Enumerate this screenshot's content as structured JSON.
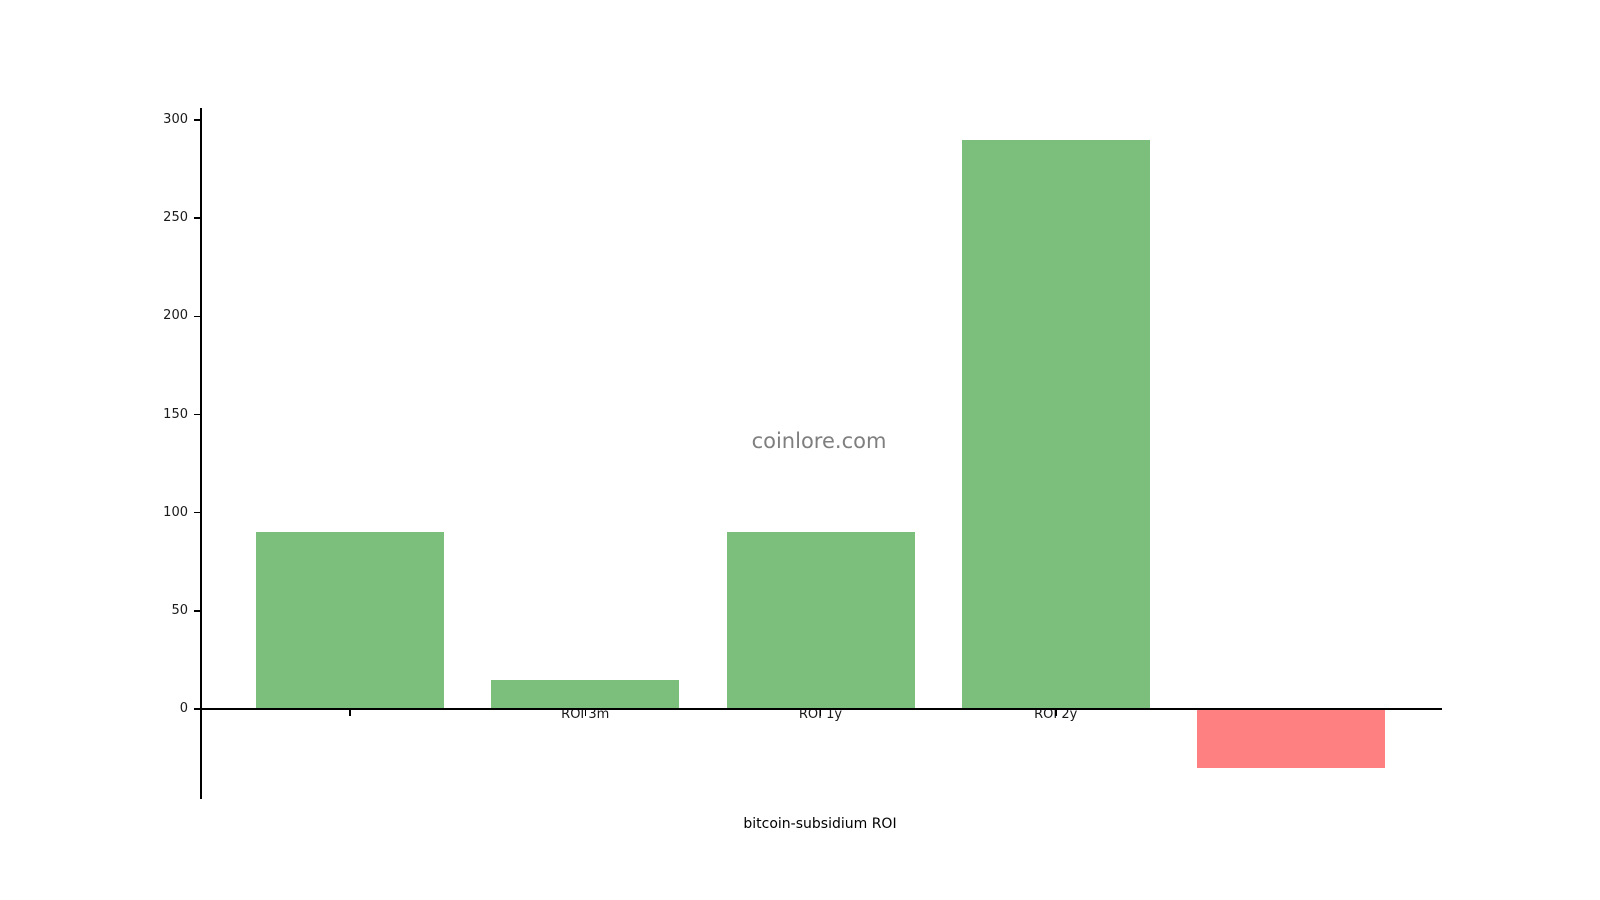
{
  "watermark": {
    "text": "coinlore.com",
    "color": "#7f7f7f"
  },
  "chart_data": {
    "type": "bar",
    "title": "",
    "xlabel": "bitcoin-subsidium ROI",
    "ylabel": "",
    "categories": [
      "",
      "ROI 3m",
      "ROI 1y",
      "ROI 2y",
      ""
    ],
    "values": [
      90,
      15,
      90,
      290,
      -30
    ],
    "bar_colors": [
      "#7cbe7c",
      "#7cbe7c",
      "#7cbe7c",
      "#7cbe7c",
      "#ff8080"
    ],
    "color_positive": "#7cbe7c",
    "color_negative": "#ff8080",
    "yticks": [
      0,
      50,
      100,
      150,
      200,
      250,
      300
    ],
    "ylim": [
      -46,
      306
    ],
    "grid": false,
    "legend": "none",
    "axis_color": "#000000",
    "tick_label_color": "#1a1a1a"
  }
}
